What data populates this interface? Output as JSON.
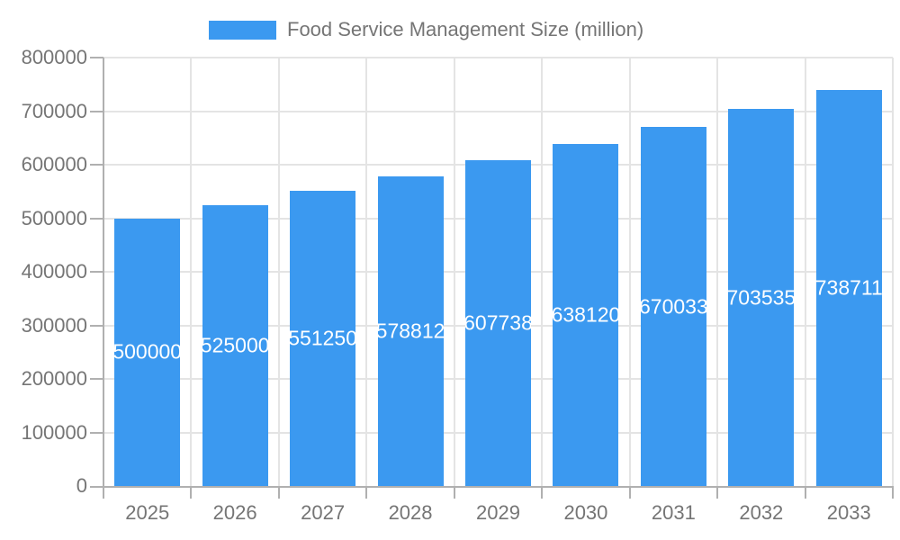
{
  "chart_data": {
    "type": "bar",
    "series_name": "Food Service Management Size (million)",
    "categories": [
      "2025",
      "2026",
      "2027",
      "2028",
      "2029",
      "2030",
      "2031",
      "2032",
      "2033"
    ],
    "values": [
      500000,
      525000,
      551250,
      578812,
      607738,
      638120,
      670033,
      703535,
      738711
    ],
    "title": "",
    "xlabel": "",
    "ylabel": "",
    "ylim": [
      0,
      800000
    ],
    "ytick_step": 100000,
    "grid": true,
    "legend_position": "top",
    "bar_color": "#3b99f0",
    "bar_label_color": "#ffffff",
    "axis_text_color": "#757575",
    "grid_color": "#e4e4e4",
    "axis_line_color": "#b0b0b0"
  }
}
